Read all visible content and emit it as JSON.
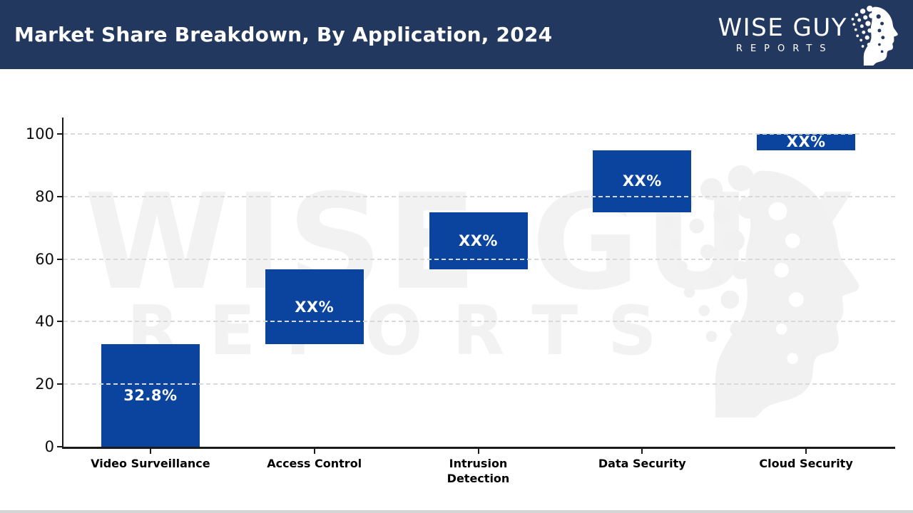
{
  "header": {
    "title": "Market Share Breakdown, By Application, 2024",
    "logo": {
      "line1": "WISE GUY",
      "line2": "REPORTS"
    }
  },
  "watermark": {
    "line1": "WISE GUY",
    "line2": "REPORTS"
  },
  "chart_data": {
    "type": "bar",
    "subtype": "floating-waterfall",
    "title": "Market Share Breakdown, By Application, 2024",
    "categories": [
      "Video Surveillance",
      "Access Control",
      "Intrusion Detection",
      "Data Security",
      "Cloud Security"
    ],
    "xlabels_display": [
      "Video Surveillance",
      "Access Control",
      "Intrusion\nDetection",
      "Data Security",
      "Cloud Security"
    ],
    "segments": [
      {
        "category": "Video Surveillance",
        "start": 0,
        "end": 32.8,
        "value": 32.8,
        "label": "32.8%"
      },
      {
        "category": "Access Control",
        "start": 32.8,
        "end": 56.7,
        "value": 23.9,
        "label": "XX%"
      },
      {
        "category": "Intrusion Detection",
        "start": 56.7,
        "end": 75.0,
        "value": 18.3,
        "label": "XX%"
      },
      {
        "category": "Data Security",
        "start": 75.0,
        "end": 94.8,
        "value": 19.8,
        "label": "XX%"
      },
      {
        "category": "Cloud Security",
        "start": 94.8,
        "end": 100.0,
        "value": 5.2,
        "label": "XX%"
      }
    ],
    "yticks": [
      0,
      20,
      40,
      60,
      80,
      100
    ],
    "ylim": [
      0,
      105
    ],
    "xlabel": "",
    "ylabel": "",
    "grid": "horizontal-dashed",
    "legend": "none",
    "bar_color": "#0a449e",
    "bar_label_color": "#ffffff"
  },
  "colors": {
    "header_bg": "#22385f",
    "footer_bg": "#d4d4d4",
    "axis": "#1a1a1a",
    "gridline": "#d9d9d9",
    "tick_label": "#0d0d0d",
    "watermark": "#f2f2f2"
  }
}
